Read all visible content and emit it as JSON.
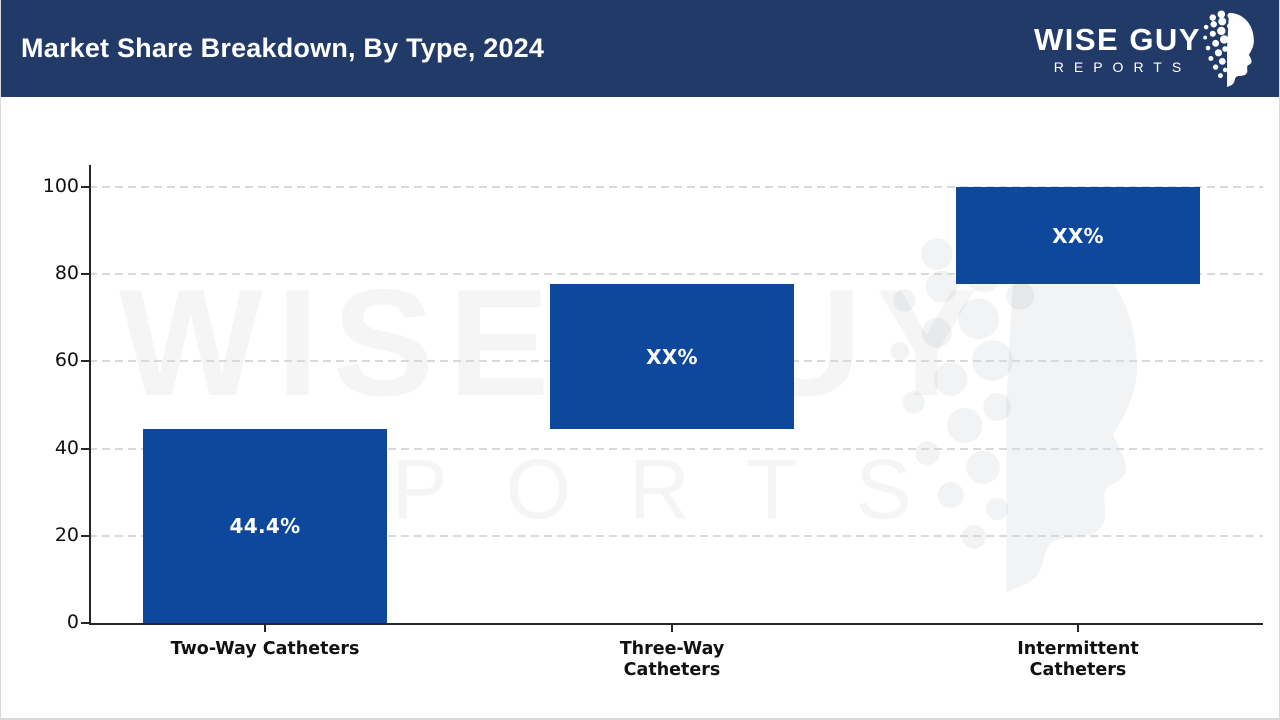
{
  "header": {
    "title": "Market Share Breakdown, By Type, 2024",
    "logo": {
      "wordmark": "WISE GUY",
      "subtitle": "REPORTS"
    }
  },
  "watermark": {
    "line1": "WISE GUY",
    "line2": "REPORTS"
  },
  "colors": {
    "header_bg": "#223a68",
    "bar": "#0d489c",
    "value_label": "#ffffff",
    "gridline": "#d9d9d9",
    "axis": "#262626"
  },
  "chart_data": {
    "type": "bar",
    "subtype": "waterfall-stacked",
    "title": "Market Share Breakdown, By Type, 2024",
    "xlabel": "",
    "ylabel": "",
    "ylim": [
      0,
      105
    ],
    "yticks": [
      0,
      20,
      40,
      60,
      80,
      100
    ],
    "grid": "horizontal-dashed",
    "legend": "none",
    "categories": [
      [
        "Two-Way Catheters"
      ],
      [
        "Three-Way",
        "Catheters"
      ],
      [
        "Intermittent",
        "Catheters"
      ]
    ],
    "segments": [
      {
        "category": "Two-Way Catheters",
        "start": 0,
        "end": 44.4,
        "label": "44.4%"
      },
      {
        "category": "Three-Way Catheters",
        "start": 44.4,
        "end": 77.7,
        "label": "XX%"
      },
      {
        "category": "Intermittent Catheters",
        "start": 77.7,
        "end": 99.9,
        "label": "XX%"
      }
    ]
  }
}
